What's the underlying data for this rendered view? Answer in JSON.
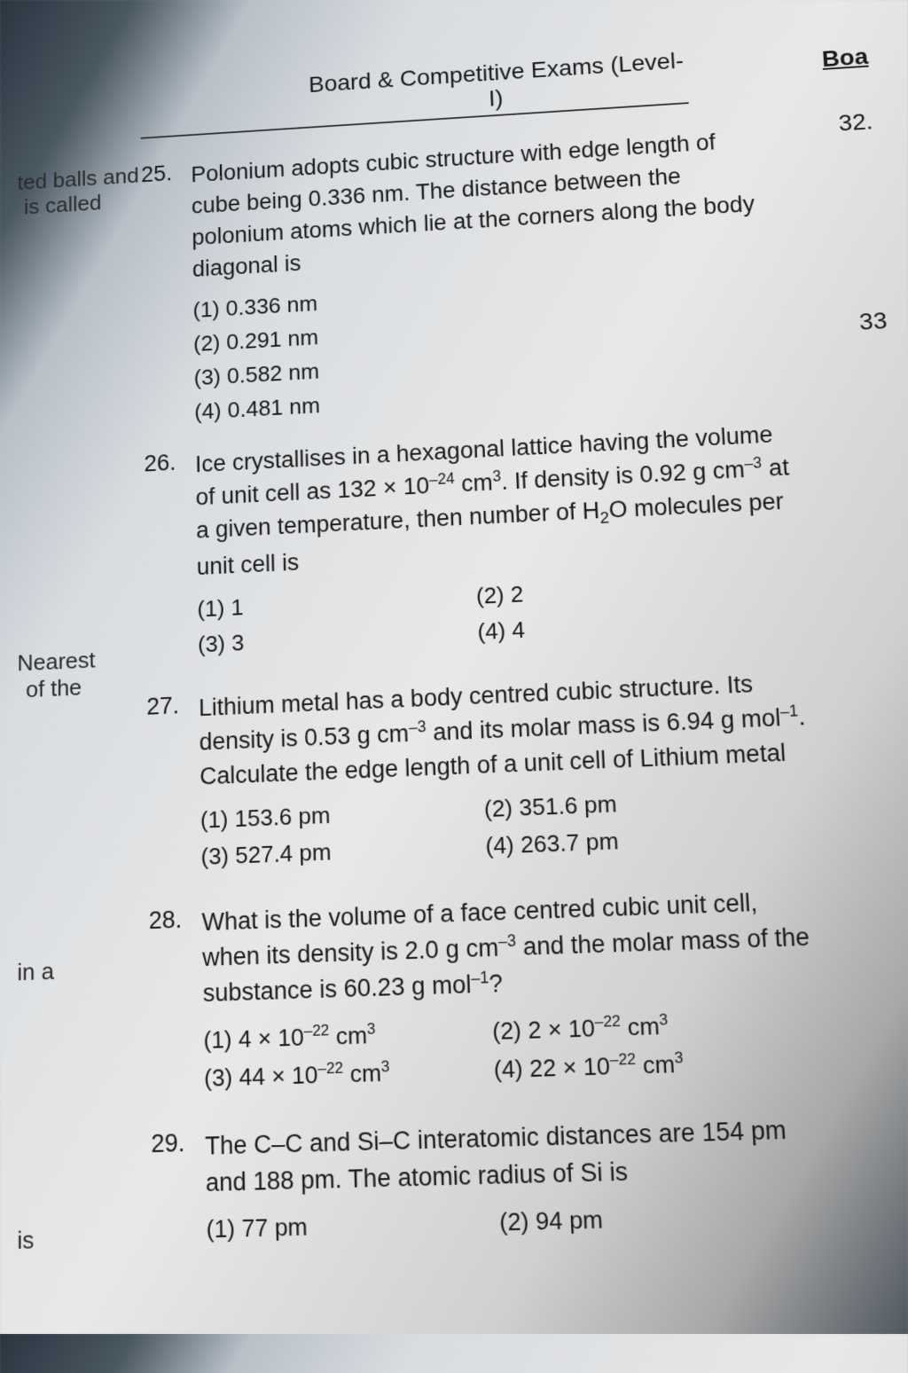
{
  "header": "Board & Competitive Exams (Level-I)",
  "left_fragments": {
    "f1a": "ted balls and",
    "f1b": "is called",
    "f2a": "Nearest",
    "f2b": "of the",
    "f3": "in a",
    "f4": "is"
  },
  "right_fragments": {
    "r1": "Boa",
    "r2": "32.",
    "r3": "33"
  },
  "questions": [
    {
      "num": "25.",
      "text": "Polonium adopts cubic structure with edge length of cube being 0.336 nm. The distance between the polonium atoms which lie at the corners along the body diagonal is",
      "layout": "single",
      "options": [
        "(1)  0.336 nm",
        "(2)  0.291 nm",
        "(3)  0.582 nm",
        "(4)  0.481 nm"
      ]
    },
    {
      "num": "26.",
      "text_html": "Ice crystallises in a hexagonal lattice having the volume of unit cell as 132 × 10<sup>–24</sup> cm<sup>3</sup>. If density is 0.92 g cm<sup>–3</sup> at a given temperature, then number of H<sub>2</sub>O molecules per unit cell is",
      "layout": "grid",
      "options": [
        "(1)  1",
        "(2)  2",
        "(3)  3",
        "(4)  4"
      ]
    },
    {
      "num": "27.",
      "text_html": "Lithium metal has a body centred cubic structure. Its density is 0.53 g cm<sup>–3</sup> and its molar mass is 6.94 g mol<sup>–1</sup>. Calculate the edge length of a unit cell of Lithium metal",
      "layout": "grid",
      "options": [
        "(1)  153.6 pm",
        "(2)  351.6 pm",
        "(3)  527.4 pm",
        "(4)  263.7 pm"
      ]
    },
    {
      "num": "28.",
      "text_html": "What is the volume of a face centred cubic unit cell, when its density is 2.0 g cm<sup>–3</sup> and the molar mass of the substance is 60.23 g mol<sup>–1</sup>?",
      "layout": "grid",
      "options_html": [
        "(1)  4 × 10<sup>–22</sup> cm<sup>3</sup>",
        "(2)  2 × 10<sup>–22</sup> cm<sup>3</sup>",
        "(3)  44 × 10<sup>–22</sup> cm<sup>3</sup>",
        "(4)  22 × 10<sup>–22</sup> cm<sup>3</sup>"
      ]
    },
    {
      "num": "29.",
      "text_html": "The C–C and Si–C interatomic distances are 154 pm and 188 pm. The atomic radius of Si is",
      "layout": "grid",
      "options": [
        "(1)  77 pm",
        "(2)  94 pm"
      ]
    }
  ]
}
